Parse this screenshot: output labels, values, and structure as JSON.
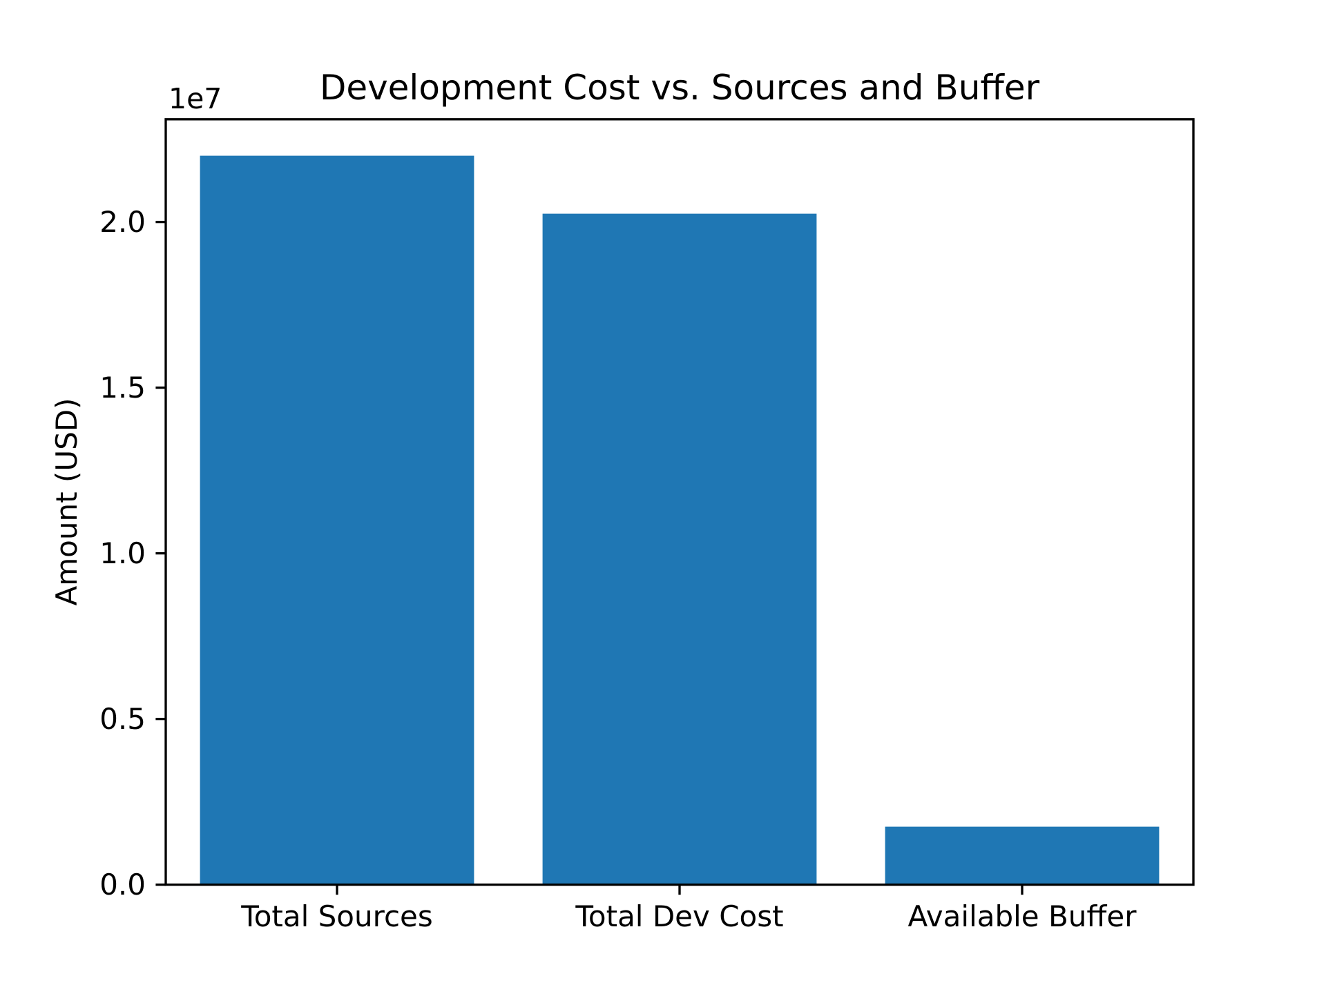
{
  "chart_data": {
    "type": "bar",
    "title": "Development Cost vs. Sources and Buffer",
    "ylabel": "Amount (USD)",
    "xlabel": "",
    "offset_text": "1e7",
    "categories": [
      "Total Sources",
      "Total Dev Cost",
      "Available Buffer"
    ],
    "values": [
      22000000,
      20250000,
      1750000
    ],
    "yticks": [
      0,
      5000000,
      10000000,
      15000000,
      20000000
    ],
    "ytick_labels": [
      "0.0",
      "0.5",
      "1.0",
      "1.5",
      "2.0"
    ],
    "ylim": [
      0,
      23100000
    ],
    "bar_width_fraction": 0.8,
    "bar_color": "#1f77b4",
    "axis_color": "#000000",
    "text_color": "#000000",
    "background_color": "#ffffff",
    "grid": false,
    "legend_position": "none"
  }
}
